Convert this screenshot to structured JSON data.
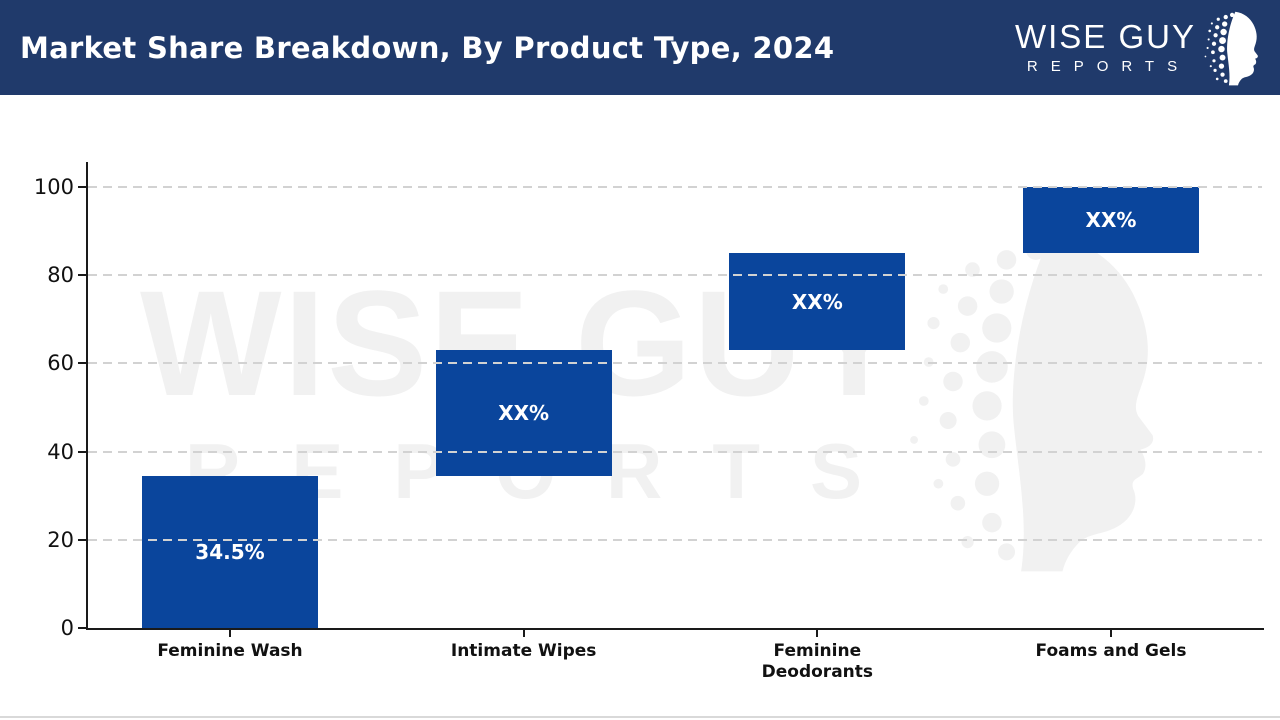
{
  "header": {
    "title": "Market Share Breakdown, By Product Type, 2024",
    "logo": {
      "line1": "WISE GUY",
      "line2": "REPORTS"
    }
  },
  "watermark": {
    "line1": "WISE GUY",
    "line2": "REPORTS"
  },
  "chart_data": {
    "type": "bar",
    "subtype": "waterfall",
    "title": "Market Share Breakdown, By Product Type, 2024",
    "categories": [
      "Feminine Wash",
      "Intimate Wipes",
      "Feminine\nDeodorants",
      "Foams and Gels"
    ],
    "segments": [
      {
        "category": "Feminine Wash",
        "start": 0,
        "end": 34.5,
        "label": "34.5%"
      },
      {
        "category": "Intimate Wipes",
        "start": 34.5,
        "end": 63,
        "label": "XX%"
      },
      {
        "category": "Feminine Deodorants",
        "start": 63,
        "end": 85,
        "label": "XX%"
      },
      {
        "category": "Foams and Gels",
        "start": 85,
        "end": 100,
        "label": "XX%"
      }
    ],
    "yticks": [
      0,
      20,
      40,
      60,
      80,
      100
    ],
    "ylim": [
      0,
      106
    ],
    "xlabel": "",
    "ylabel": "",
    "grid": "horizontal-dashed",
    "legend": "none",
    "bar_color": "#0a459c",
    "bar_label_color": "#ffffff"
  },
  "colors": {
    "header_bg": "#203a6b",
    "bar": "#0a459c",
    "axis": "#1a1a1a",
    "grid": "#d2d2d2",
    "watermark": "#f1f1f1",
    "footer_line": "#d9d9d9"
  }
}
